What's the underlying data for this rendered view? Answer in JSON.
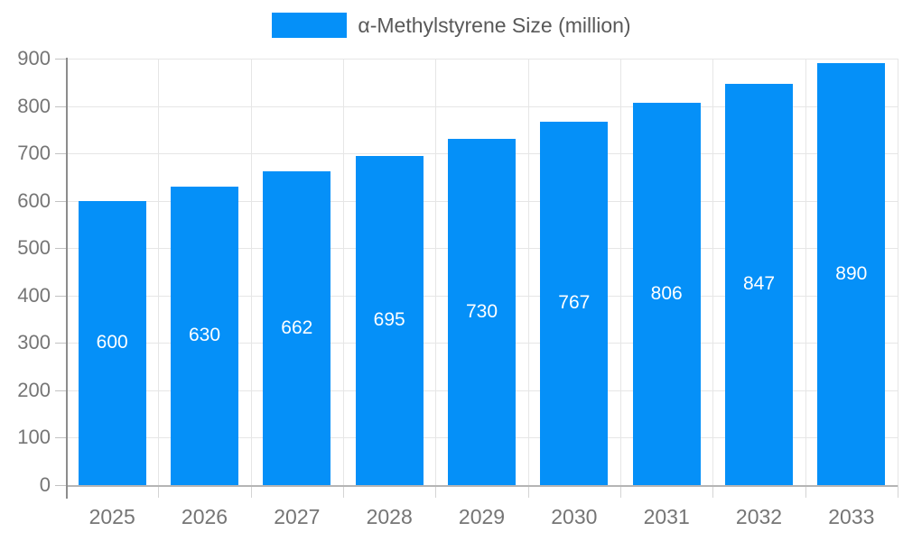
{
  "chart_data": {
    "type": "bar",
    "title": "",
    "categories": [
      "2025",
      "2026",
      "2027",
      "2028",
      "2029",
      "2030",
      "2031",
      "2032",
      "2033"
    ],
    "series": [
      {
        "name": "α-Methylstyrene Size (million)",
        "color": "#0590f8",
        "values": [
          600,
          630,
          662,
          695,
          730,
          767,
          806,
          847,
          890
        ]
      }
    ],
    "xlabel": "",
    "ylabel": "",
    "ylim": [
      0,
      900
    ],
    "ytick_step": 100,
    "ytick_labels": [
      "0",
      "100",
      "200",
      "300",
      "400",
      "500",
      "600",
      "700",
      "800",
      "900"
    ],
    "grid": true,
    "legend_position": "top",
    "value_labels": "inside-center"
  },
  "legend": {
    "label": "α-Methylstyrene Size (million)",
    "swatch_color": "#0590f8"
  },
  "colors": {
    "bar": "#0590f8",
    "bar_value_text": "#ffffff",
    "axis_text": "#757575",
    "legend_text": "#595959",
    "gridline": "#e6e6e6",
    "x_axis_line": "#b5b5b5",
    "y_axis_line": "#8c8c8c",
    "tick": "#c2c2c2",
    "x_tick": "#d4d4d4",
    "background": "#ffffff"
  }
}
